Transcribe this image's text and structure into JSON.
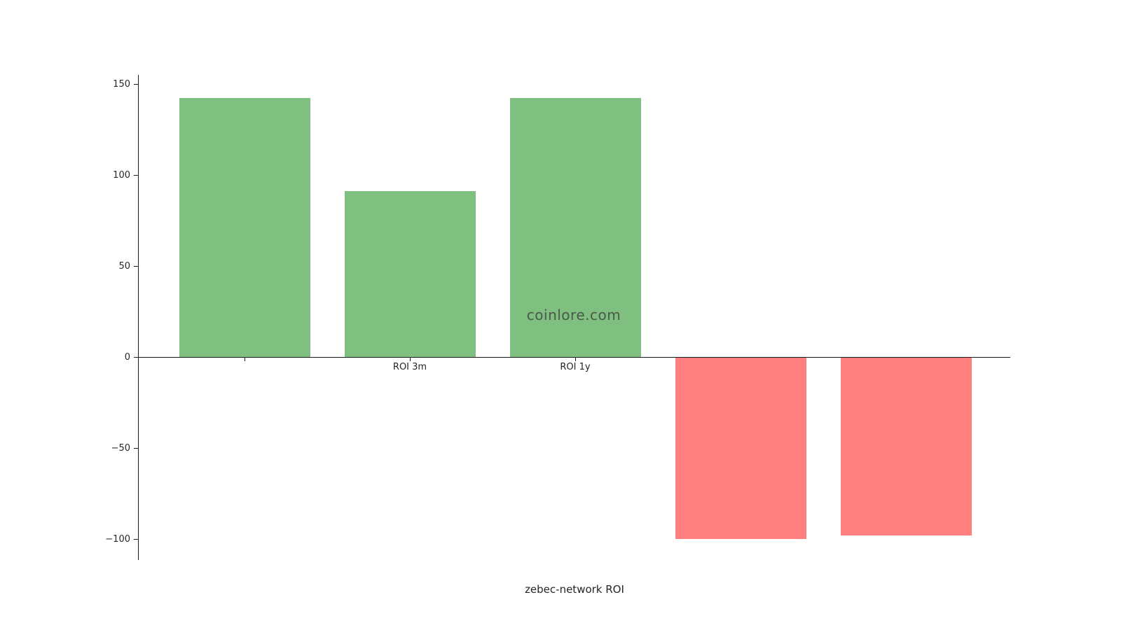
{
  "page": {
    "background": "#ffffff"
  },
  "watermark": {
    "text": "coinlore.com",
    "color": "#3c3c3c",
    "opacity": 0.78
  },
  "chart_data": {
    "type": "bar",
    "title": "",
    "xlabel": "zebec-network ROI",
    "ylabel": "",
    "categories": [
      "",
      "ROI 3m",
      "ROI 1y",
      "",
      ""
    ],
    "values": [
      142.3,
      91.2,
      142.3,
      -99.6,
      -97.7
    ],
    "positive_color": "#7fbf7f",
    "negative_color": "#ff7f7f",
    "axis_color": "#1a1a1a",
    "tick_label_color": "#262626",
    "yticks": [
      150,
      100,
      50,
      0,
      -50,
      -100
    ],
    "ytick_labels": [
      "150",
      "100",
      "50",
      "0",
      "−50",
      "−100"
    ],
    "xticks": [
      {
        "position": 0,
        "label": ""
      },
      {
        "position": 1,
        "label": "ROI 3m"
      },
      {
        "position": 2,
        "label": "ROI 1y"
      }
    ],
    "ylim": [
      -111.7,
      154.8
    ],
    "grid": false,
    "legend": "none"
  }
}
